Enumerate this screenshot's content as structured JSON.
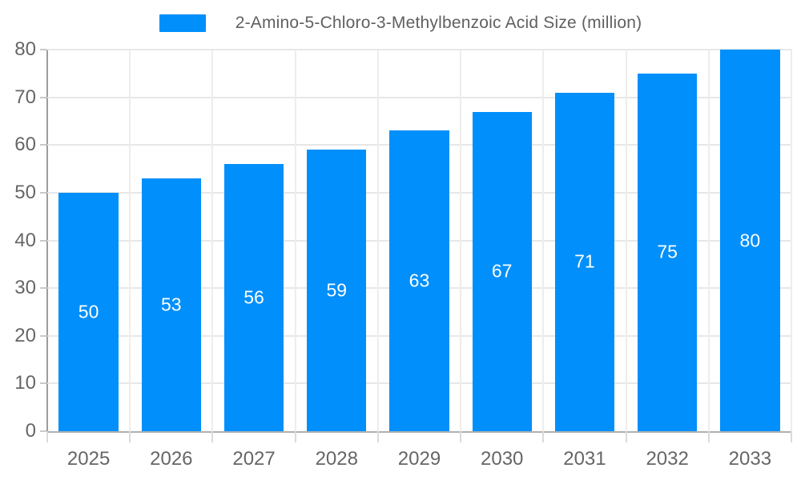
{
  "chart_data": {
    "type": "bar",
    "title": "2-Amino-5-Chloro-3-Methylbenzoic Acid Size (million)",
    "series_name": "2-Amino-5-Chloro-3-Methylbenzoic Acid Size (million)",
    "legend_position": "top",
    "categories": [
      "2025",
      "2026",
      "2027",
      "2028",
      "2029",
      "2030",
      "2031",
      "2032",
      "2033"
    ],
    "values": [
      50,
      53,
      56,
      59,
      63,
      67,
      71,
      75,
      80
    ],
    "xlabel": "",
    "ylabel": "",
    "ylim": [
      0,
      80
    ],
    "yticks": [
      0,
      10,
      20,
      30,
      40,
      50,
      60,
      70,
      80
    ],
    "grid": true,
    "bar_color": "#008FFB",
    "value_label_color": "#FFFFFF",
    "axis_text_color": "#666666",
    "grid_color": "#E7E7E7"
  }
}
